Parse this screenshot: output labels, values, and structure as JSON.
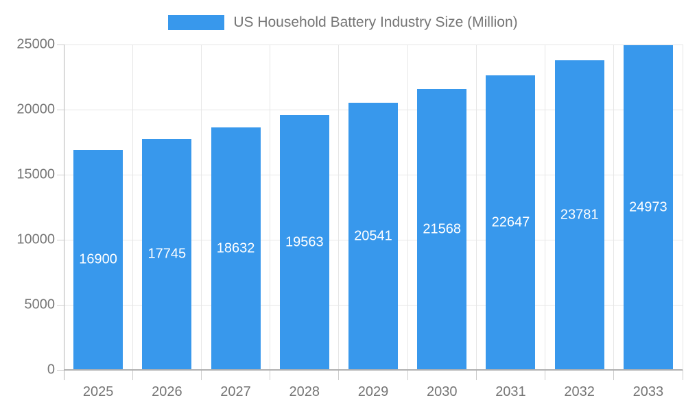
{
  "legend": {
    "label": "US Household Battery Industry Size (Million)"
  },
  "colors": {
    "bar": "#3898ec",
    "grid": "#e6e6e6",
    "axis_line": "#b0b0b0",
    "y_axis_line": "#b3b3b3",
    "tick": "#cccccc",
    "axis_text": "#757575",
    "bar_label_text": "#ffffff",
    "background": "#ffffff"
  },
  "chart_data": {
    "type": "bar",
    "title": "US Household Battery Industry Size (Million)",
    "categories": [
      "2025",
      "2026",
      "2027",
      "2028",
      "2029",
      "2030",
      "2031",
      "2032",
      "2033"
    ],
    "values": [
      16900,
      17745,
      18632,
      19563,
      20541,
      21568,
      22647,
      23781,
      24973
    ],
    "xlabel": "",
    "ylabel": "",
    "ylim": [
      0,
      25000
    ],
    "yticks": [
      0,
      5000,
      10000,
      15000,
      20000,
      25000
    ],
    "grid": true,
    "legend_position": "top",
    "value_labels": "inside-center"
  }
}
